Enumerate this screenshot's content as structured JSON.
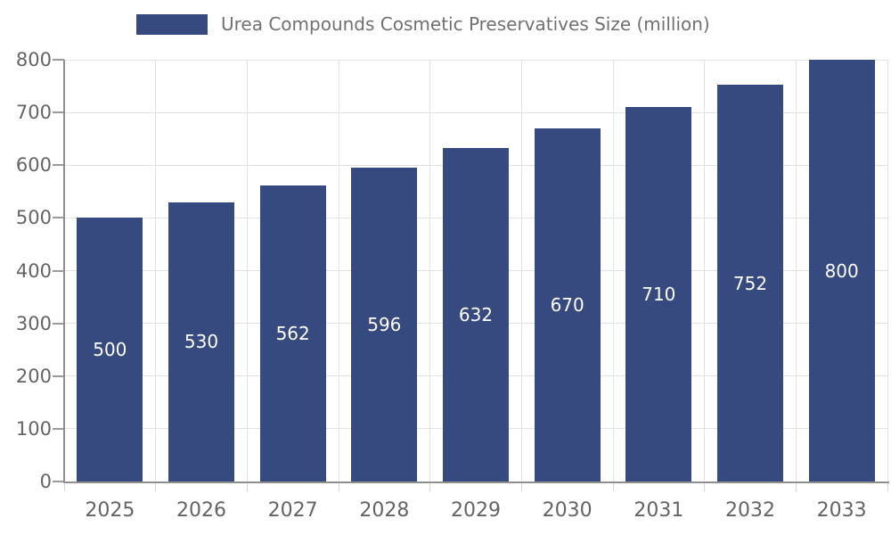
{
  "chart_data": {
    "type": "bar",
    "title": "Urea Compounds Cosmetic Preservatives Size (million)",
    "legend": {
      "position": "top",
      "label": "Urea Compounds Cosmetic Preservatives Size (million)"
    },
    "categories": [
      "2025",
      "2026",
      "2027",
      "2028",
      "2029",
      "2030",
      "2031",
      "2032",
      "2033"
    ],
    "values": [
      500,
      530,
      562,
      596,
      632,
      670,
      710,
      752,
      800
    ],
    "xlabel": "",
    "ylabel": "",
    "ylim": [
      0,
      800
    ],
    "yticks": [
      0,
      100,
      200,
      300,
      400,
      500,
      600,
      700,
      800
    ],
    "grid": "on",
    "colors": {
      "bar_fill": "#374A7F",
      "value_label": "#FFFFFF",
      "gridline": "#E3E3E3",
      "axis_line": "#8F8F8F",
      "y_tick_mark": "#9A9A9A",
      "x_tick_mark": "#D6D6D6",
      "tick_label": "#646464",
      "legend_text": "#707070"
    }
  }
}
